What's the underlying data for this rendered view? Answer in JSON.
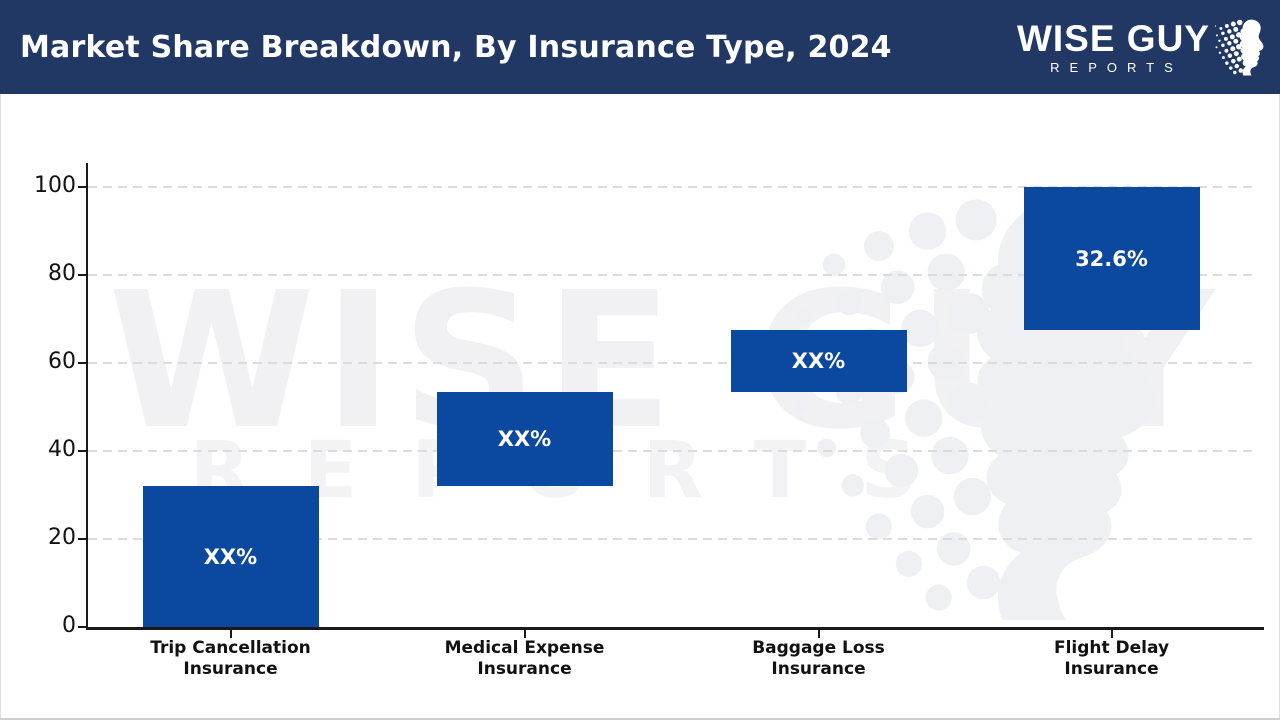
{
  "header": {
    "title": "Market Share Breakdown, By Insurance Type, 2024",
    "bg_color": "#223864",
    "logo": {
      "line1": "WISE GUY",
      "line2": "REPORTS"
    }
  },
  "watermark": {
    "line1": "WISE GUY",
    "line2": "REPORTS"
  },
  "chart_data": {
    "type": "bar",
    "subtype": "floating-waterfall",
    "title": "Market Share Breakdown, By Insurance Type, 2024",
    "categories": [
      [
        "Trip Cancellation",
        "Insurance"
      ],
      [
        "Medical Expense",
        "Insurance"
      ],
      [
        "Baggage Loss",
        "Insurance"
      ],
      [
        "Flight Delay",
        "Insurance"
      ]
    ],
    "segments": [
      {
        "label": "XX%",
        "start": 0,
        "end": 32
      },
      {
        "label": "XX%",
        "start": 32,
        "end": 53.4
      },
      {
        "label": "XX%",
        "start": 53.4,
        "end": 67.4
      },
      {
        "label": "32.6%",
        "start": 67.4,
        "end": 100
      }
    ],
    "xlabel": "",
    "ylabel": "",
    "ylim": [
      0,
      100
    ],
    "yticks": [
      0,
      20,
      40,
      60,
      80,
      100
    ],
    "grid": true,
    "grid_style": "dashed",
    "legend": false,
    "bar_color": "#0b48a0",
    "bar_label_color": "#ffffff"
  },
  "colors": {
    "header_bg": "#223864",
    "bar_blue": "#0b48a0",
    "gridline": "#dcdcdc",
    "axis": "#1a1a1a",
    "watermark": "#f1f1f4"
  }
}
